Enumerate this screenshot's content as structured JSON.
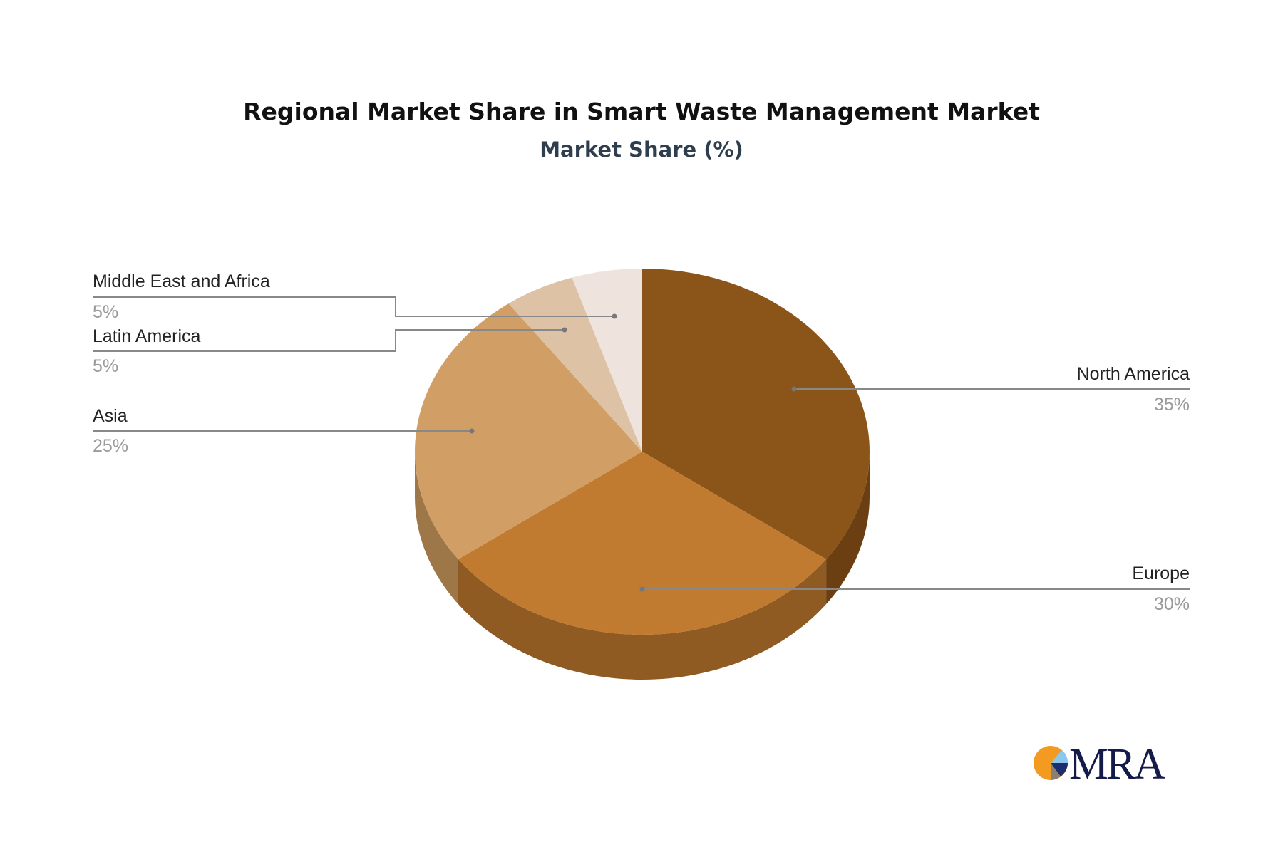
{
  "chart_data": {
    "type": "pie",
    "style": "3d",
    "title": "Regional Market Share in Smart Waste Management Market",
    "subtitle": "Market Share (%)",
    "slices": [
      {
        "label": "North America",
        "value": 35,
        "value_label": "35%",
        "color": "#8B5419",
        "side_color": "#6B3F12"
      },
      {
        "label": "Europe",
        "value": 30,
        "value_label": "30%",
        "color": "#C07B30",
        "side_color": "#8F5B23"
      },
      {
        "label": "Asia",
        "value": 25,
        "value_label": "25%",
        "color": "#D19F66",
        "side_color": "#9E7749"
      },
      {
        "label": "Latin America",
        "value": 5,
        "value_label": "5%",
        "color": "#DDC2A5",
        "side_color": "#A89078"
      },
      {
        "label": "Middle East and Africa",
        "value": 5,
        "value_label": "5%",
        "color": "#EEE4DD",
        "side_color": "#B5ABA4"
      }
    ]
  },
  "logo": {
    "text": "MRA",
    "colors": {
      "orange": "#F39A21",
      "light_blue": "#8CC8EE",
      "navy": "#1B2F6E",
      "gray": "#8A7F70",
      "text": "#141A4A"
    }
  }
}
